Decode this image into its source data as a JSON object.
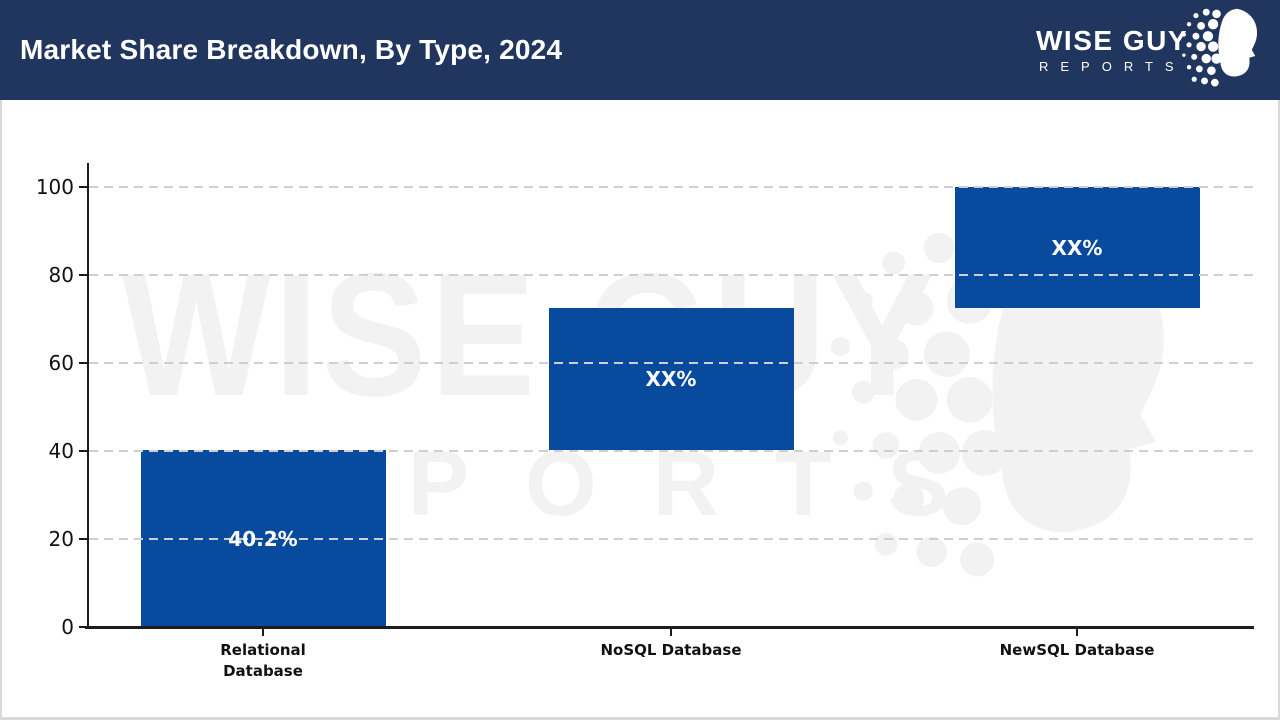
{
  "header": {
    "title": "Market Share Breakdown, By Type, 2024",
    "logo": {
      "brand_top": "WISE GUY",
      "brand_bottom": "REPORTS"
    }
  },
  "watermark": {
    "line1": "WISE GUY",
    "line2": "REPORTS"
  },
  "chart_data": {
    "type": "bar",
    "subtype": "waterfall",
    "title": "Market Share Breakdown, By Type, 2024",
    "xlabel": "",
    "ylabel": "",
    "categories": [
      "Relational Database",
      "NoSQL Database",
      "NewSQL Database"
    ],
    "category_lines": [
      [
        "Relational",
        "Database"
      ],
      [
        "NoSQL Database"
      ],
      [
        "NewSQL Database"
      ]
    ],
    "bars": [
      {
        "category": "Relational Database",
        "label": "40.2%",
        "start": 0,
        "end": 40.2
      },
      {
        "category": "NoSQL Database",
        "label": "XX%",
        "start": 40.2,
        "end": 72.5
      },
      {
        "category": "NewSQL Database",
        "label": "XX%",
        "start": 72.5,
        "end": 100
      }
    ],
    "yticks": [
      0,
      20,
      40,
      60,
      80,
      100
    ],
    "ylim": [
      0,
      105
    ],
    "grid": "horizontal-dashed",
    "legend": "none",
    "bar_color": "#084a9e",
    "bar_label_color": "#ffffff"
  },
  "colors": {
    "header_bg": "#21365e",
    "bar": "#084a9e",
    "grid": "#cfcfcf",
    "axis": "#1c1c1c",
    "watermark": "#f2f2f2",
    "frame_edge": "#d9d9d9"
  }
}
